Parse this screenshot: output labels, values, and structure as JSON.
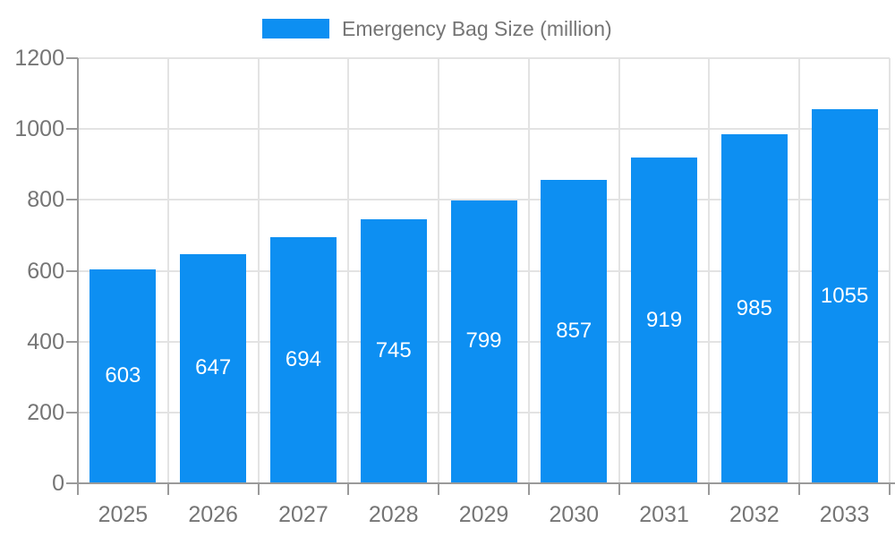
{
  "chart_data": {
    "type": "bar",
    "legend": "Emergency Bag Size (million)",
    "categories": [
      "2025",
      "2026",
      "2027",
      "2028",
      "2029",
      "2030",
      "2031",
      "2032",
      "2033"
    ],
    "values": [
      603,
      647,
      694,
      745,
      799,
      857,
      919,
      985,
      1055
    ],
    "bar_value_labels": [
      "603",
      "647",
      "694",
      "745",
      "799",
      "857",
      "919",
      "985",
      "1055"
    ],
    "ylim": [
      0,
      1200
    ],
    "yticks": [
      0,
      200,
      400,
      600,
      800,
      1000,
      1200
    ],
    "ytick_labels": [
      "0",
      "200",
      "400",
      "600",
      "800",
      "1000",
      "1200"
    ],
    "grid": true,
    "legend_position": "top-center",
    "bar_labels_inside": true,
    "colors": {
      "bar": "#0d8ff2",
      "axis": "#9a9a9a",
      "grid": "#e3e3e3",
      "tick_text": "#757575",
      "bar_label_text": "#ffffff",
      "legend_text": "#757575",
      "background": "#ffffff"
    }
  }
}
